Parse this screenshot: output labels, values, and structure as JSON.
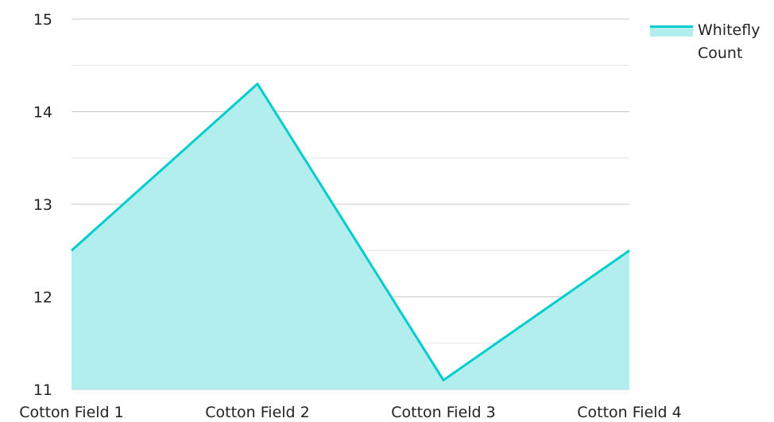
{
  "chart_data": {
    "type": "area",
    "categories": [
      "Cotton Field 1",
      "Cotton Field 2",
      "Cotton Field 3",
      "Cotton Field 4"
    ],
    "series": [
      {
        "name": "Whitefly Count",
        "values": [
          12.5,
          14.3,
          11.1,
          12.5
        ]
      }
    ],
    "yticks": [
      "11",
      "12",
      "13",
      "14",
      "15"
    ],
    "ylim": [
      11,
      15
    ],
    "grid": true,
    "legend": "top-right",
    "colors": {
      "line": "#00cccc",
      "fill": "#b2eeee",
      "grid_major": "#c8c8c8",
      "grid_minor": "#e6e6e6"
    }
  }
}
